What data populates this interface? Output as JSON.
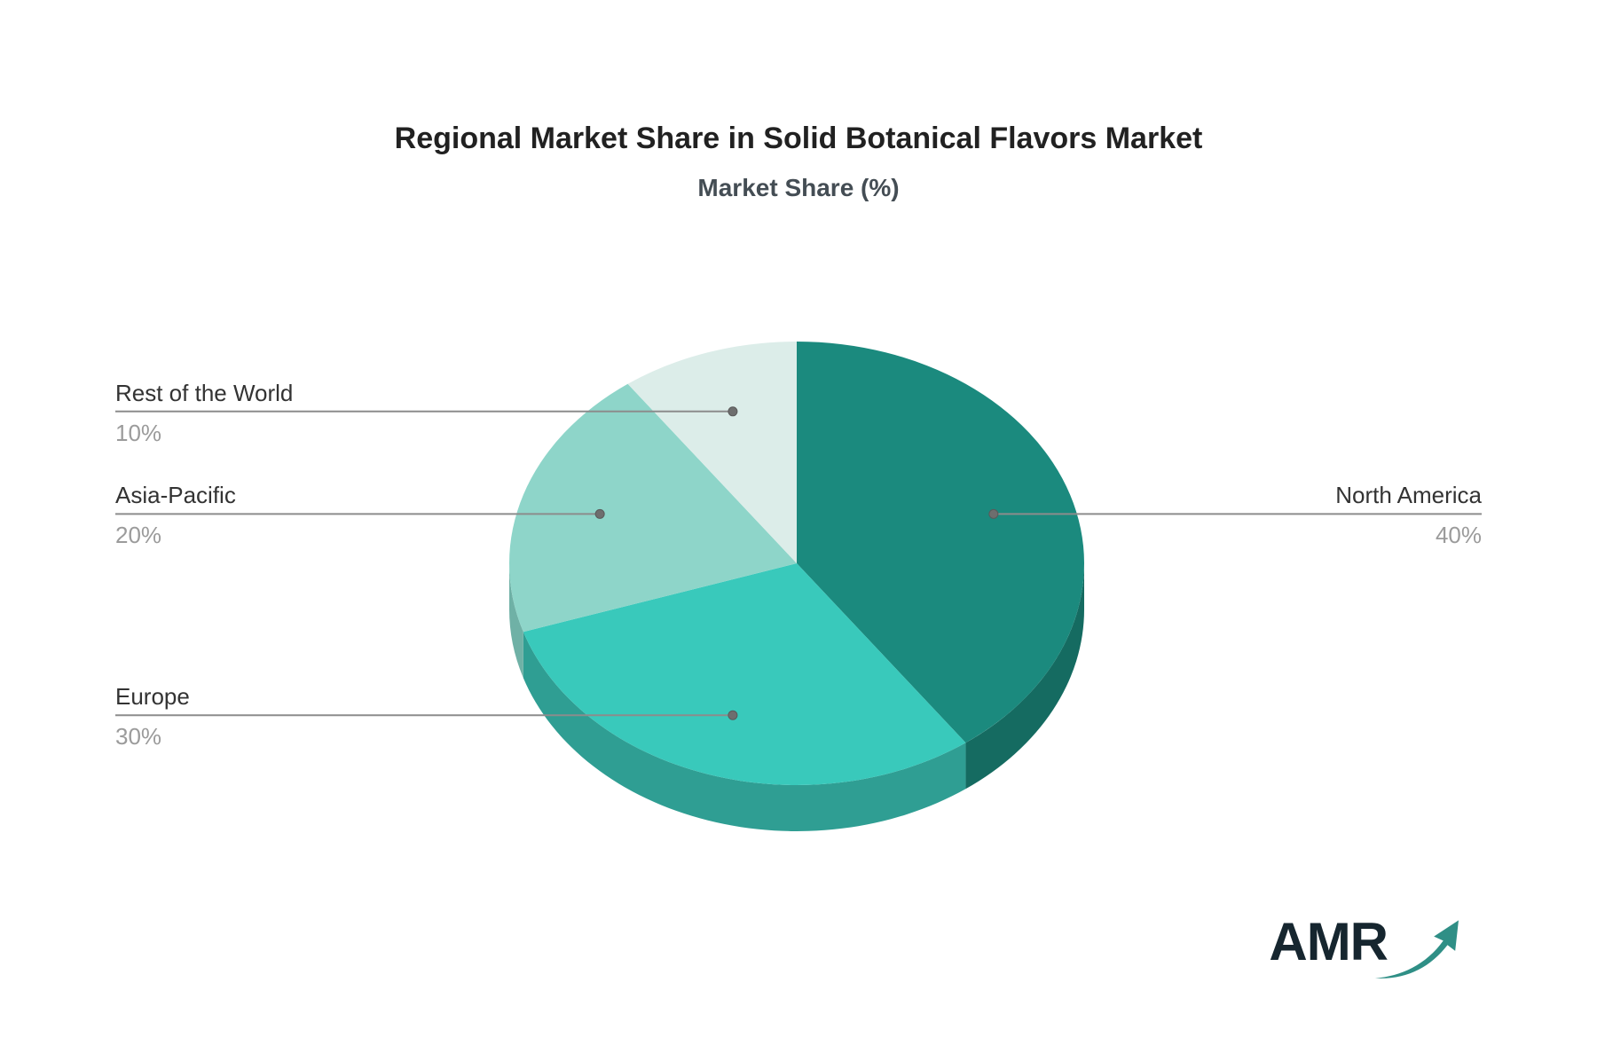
{
  "title": "Regional Market Share in Solid Botanical Flavors Market",
  "subtitle": "Market Share (%)",
  "logo": {
    "text": "AMR"
  },
  "palette": {
    "title_text": "#212121",
    "subtitle_text": "#444d54",
    "label_text": "#333333",
    "value_text": "#9b9b9b",
    "connector_line": "#8c8c8c",
    "connector_dot": "#6e6e6e",
    "logo_text": "#16262f",
    "logo_arrow": "#2f8f86"
  },
  "chart_data": {
    "type": "pie",
    "title": "Regional Market Share in Solid Botanical Flavors Market",
    "subtitle": "Market Share (%)",
    "unit": "%",
    "effect": "3d",
    "start_angle_deg": 0,
    "direction": "clockwise",
    "legend": "none",
    "slices": [
      {
        "label": "North America",
        "value": 40,
        "color": "#1b8a7e",
        "side_color": "#156b61",
        "label_side": "right"
      },
      {
        "label": "Europe",
        "value": 30,
        "color": "#39c9bb",
        "side_color": "#2f9e93",
        "label_side": "left"
      },
      {
        "label": "Asia-Pacific",
        "value": 20,
        "color": "#8ed5c9",
        "side_color": "#6fb1a6",
        "label_side": "left"
      },
      {
        "label": "Rest of the World",
        "value": 10,
        "color": "#dcede9",
        "side_color": "#b5cfc9",
        "label_side": "left"
      }
    ]
  }
}
